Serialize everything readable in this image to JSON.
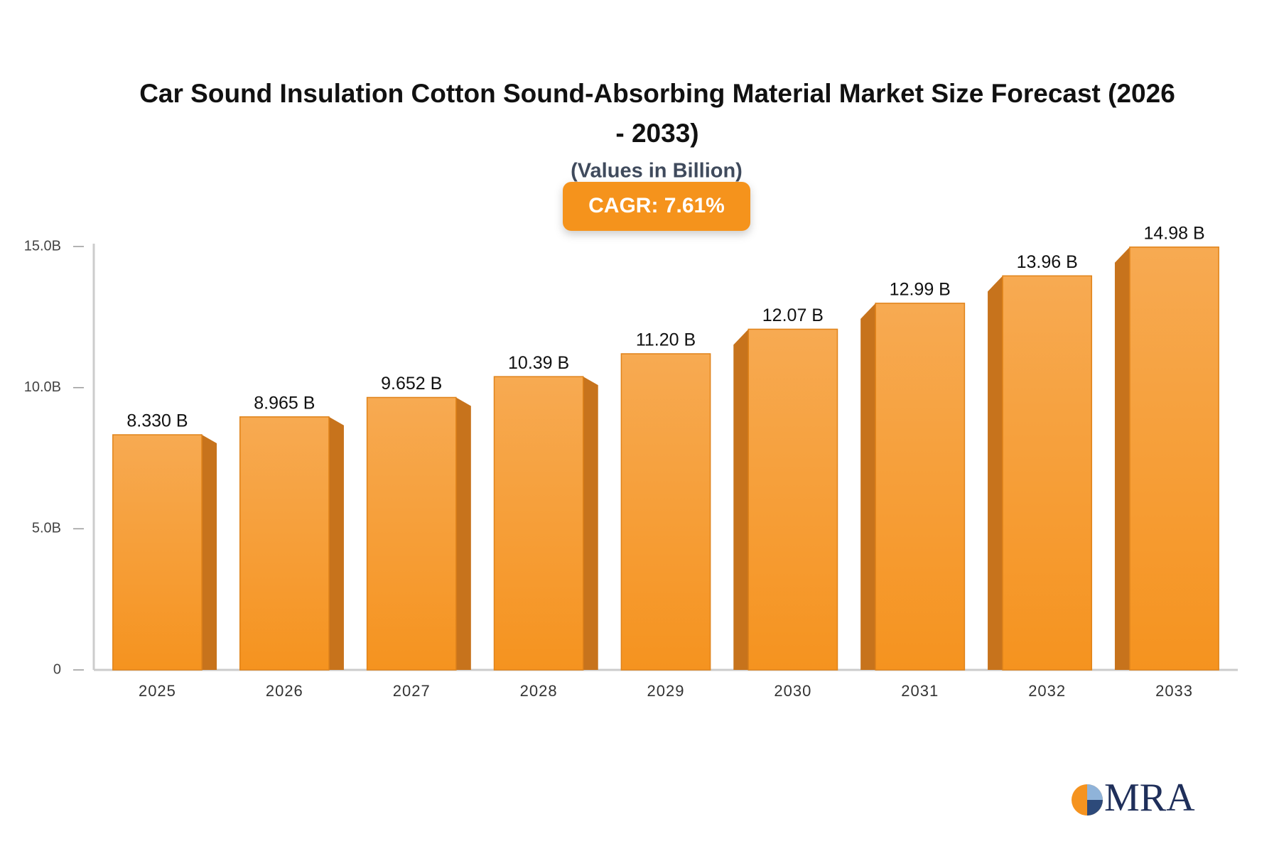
{
  "chart_data": {
    "type": "bar",
    "title": "Car Sound Insulation Cotton Sound-Absorbing Material Market Size Forecast (2026 - 2033)",
    "subtitle": "(Values in Billion)",
    "annotation": "CAGR: 7.61%",
    "logo": "MRA",
    "categories": [
      "2025",
      "2026",
      "2027",
      "2028",
      "2029",
      "2030",
      "2031",
      "2032",
      "2033"
    ],
    "values": [
      8.33,
      8.965,
      9.652,
      10.39,
      11.2,
      12.07,
      12.99,
      13.96,
      14.98
    ],
    "value_labels": [
      "8.330 B",
      "8.965 B",
      "9.652 B",
      "10.39 B",
      "11.20 B",
      "12.07 B",
      "12.99 B",
      "13.96 B",
      "14.98 B"
    ],
    "color": "#f5931f",
    "ylim": [
      0,
      15
    ],
    "yticks": [
      0,
      {
        "value": 5,
        "label": "5.0B"
      },
      {
        "value": 10,
        "label": "10.0B"
      },
      {
        "value": 15,
        "label": "15.0B"
      }
    ],
    "grid": false
  }
}
